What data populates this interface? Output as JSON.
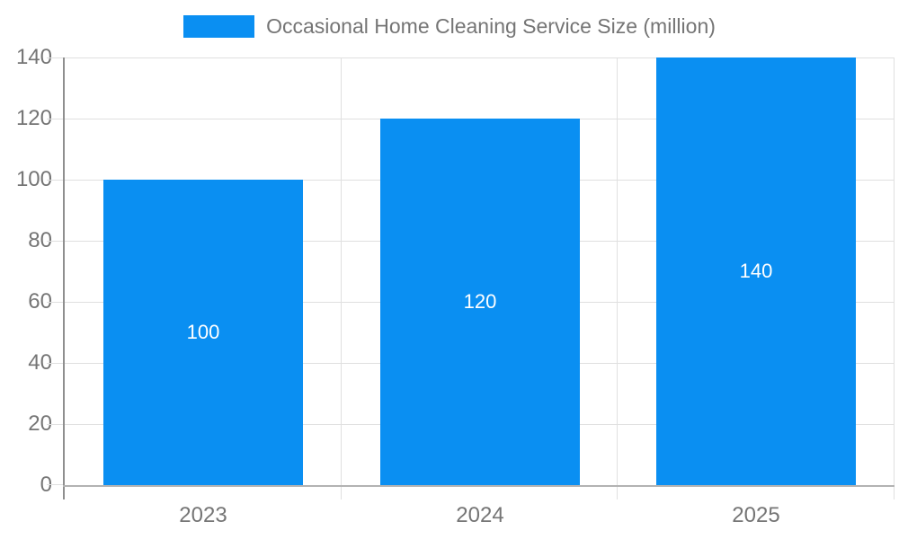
{
  "chart_data": {
    "type": "bar",
    "title": "Occasional Home Cleaning Service Size (million)",
    "legend": {
      "position": "top",
      "entries": [
        "Occasional Home Cleaning Service Size (million)"
      ]
    },
    "categories": [
      "2023",
      "2024",
      "2025"
    ],
    "series": [
      {
        "name": "Occasional Home Cleaning Service Size (million)",
        "values": [
          100,
          120,
          140
        ],
        "data_labels": [
          "100",
          "120",
          "140"
        ]
      }
    ],
    "xlabel": "",
    "ylabel": "",
    "ylim": [
      0,
      140
    ],
    "yticks": [
      0,
      20,
      40,
      60,
      80,
      100,
      120,
      140
    ],
    "ytick_labels": [
      "0",
      "20",
      "40",
      "60",
      "80",
      "100",
      "120",
      "140"
    ],
    "grid": true,
    "colors": {
      "bar": "#0A8FF2",
      "bar_value_label": "#ffffff",
      "axis_text": "#757575",
      "gridline": "#e0e0e0",
      "y_axis_line": "#8f8f8f",
      "x_axis_line": "#b3b3b3",
      "background": "#ffffff"
    }
  }
}
